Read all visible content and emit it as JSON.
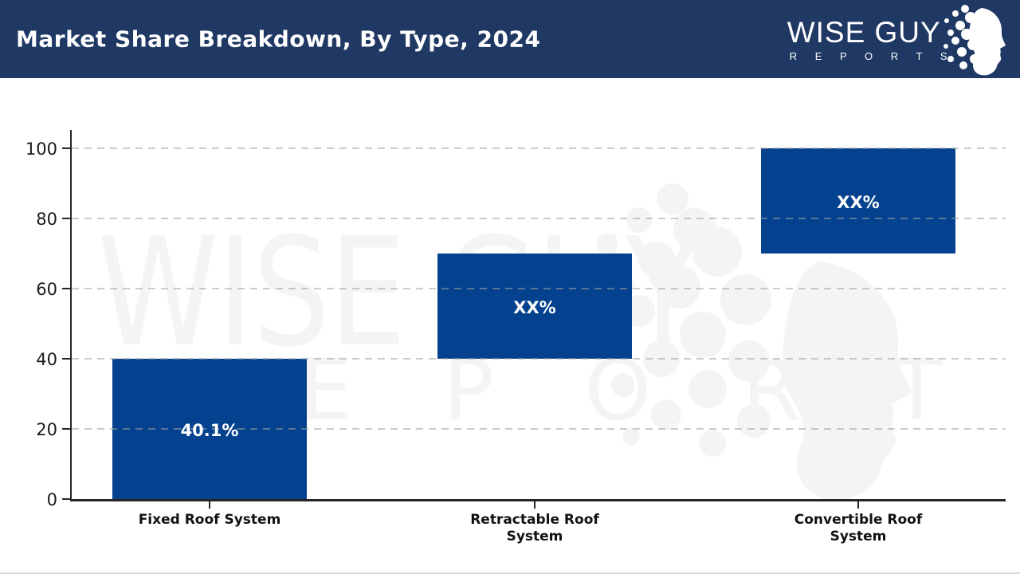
{
  "header": {
    "title": "Market Share Breakdown, By Type, 2024",
    "logo": {
      "name": "WISE GUY",
      "subtitle": "R E P O R T S"
    }
  },
  "watermark": {
    "line1": "WISE GUY",
    "line2": "R E P O R T S"
  },
  "chart_data": {
    "type": "bar",
    "subtype": "floating-segment-waterfall",
    "title": "Market Share Breakdown, By Type, 2024",
    "categories": [
      "Fixed Roof System",
      "Retractable Roof\nSystem",
      "Convertible Roof\nSystem"
    ],
    "bars": [
      {
        "category": "Fixed Roof System",
        "start": 0,
        "end": 40.1,
        "label": "40.1%"
      },
      {
        "category": "Retractable Roof System",
        "start": 40.1,
        "end": 70,
        "label": "XX%"
      },
      {
        "category": "Convertible Roof System",
        "start": 70,
        "end": 100,
        "label": "XX%"
      }
    ],
    "yticks": [
      0,
      20,
      40,
      60,
      80,
      100
    ],
    "ylim": [
      0,
      105
    ],
    "xlabel": "",
    "ylabel": "",
    "grid": "horizontal-dashed",
    "legend": false,
    "bar_color": "#04428f",
    "header_bg_color": "#1f3864",
    "label_color": "#ffffff"
  }
}
